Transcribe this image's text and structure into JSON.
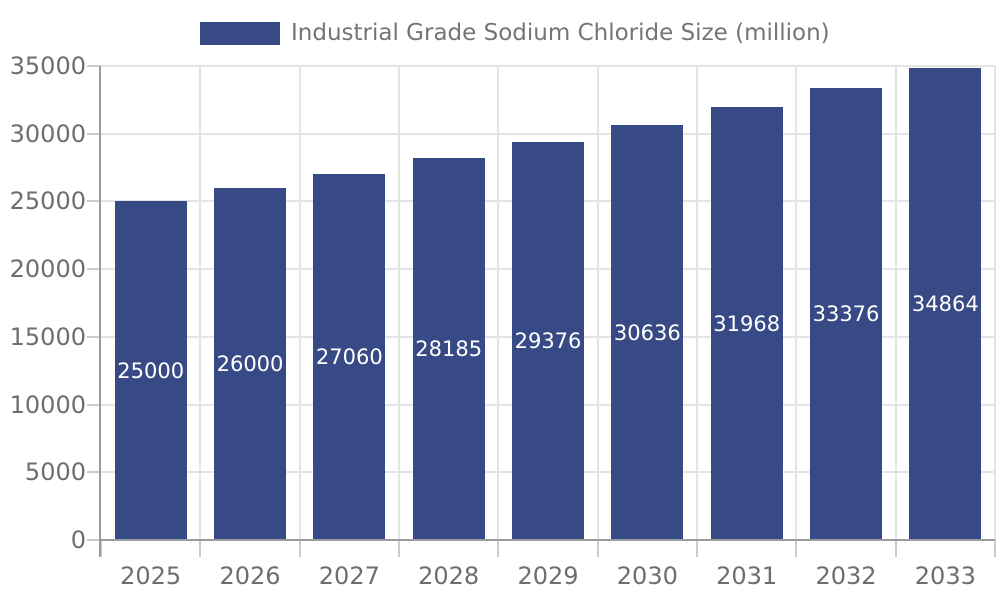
{
  "chart_data": {
    "type": "bar",
    "title": "",
    "legend": "Industrial Grade Sodium Chloride Size (million)",
    "legend_position": "top-center",
    "categories": [
      "2025",
      "2026",
      "2027",
      "2028",
      "2029",
      "2030",
      "2031",
      "2032",
      "2033"
    ],
    "values": [
      25000,
      26000,
      27060,
      28185,
      29376,
      30636,
      31968,
      33376,
      34864
    ],
    "value_labels": [
      "25000",
      "26000",
      "27060",
      "28185",
      "29376",
      "30636",
      "31968",
      "33376",
      "34864"
    ],
    "xlabel": "",
    "ylabel": "",
    "ylim": [
      0,
      35000
    ],
    "yticks": [
      0,
      5000,
      10000,
      15000,
      20000,
      25000,
      30000,
      35000
    ],
    "ytick_labels": [
      "0",
      "5000",
      "10000",
      "15000",
      "20000",
      "25000",
      "30000",
      "35000"
    ],
    "grid": true,
    "colors": {
      "bar": "#374a85",
      "bar_label": "#ffffff",
      "gridline": "#e4e4e4",
      "tick_mark": "#cbcbcb",
      "axis_line": "#9c9c9c",
      "tick_label": "#6e6e6e",
      "legend_text": "#757575"
    }
  }
}
